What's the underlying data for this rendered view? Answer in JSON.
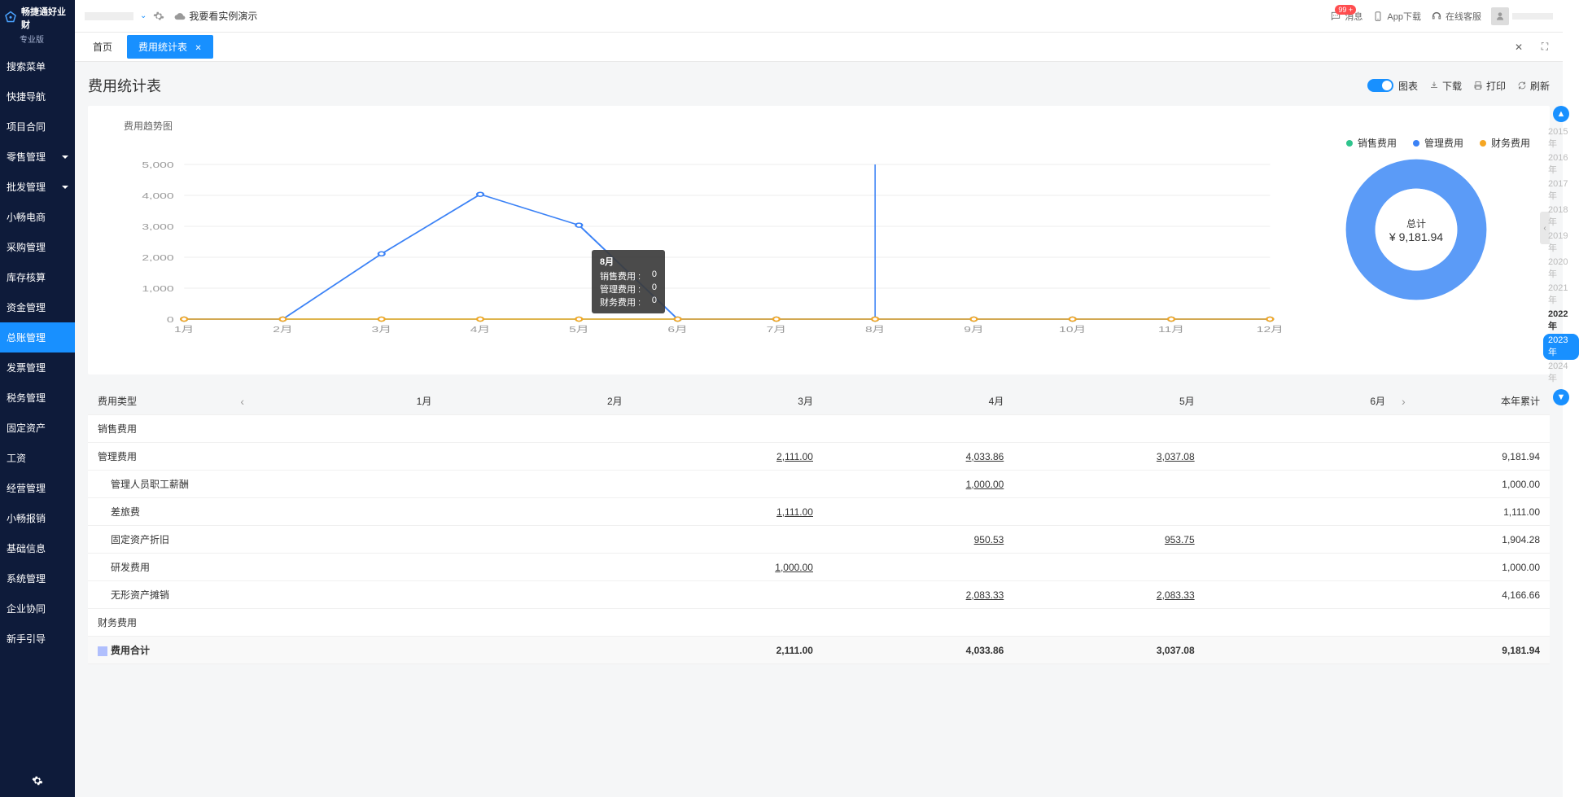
{
  "app": {
    "brand": "畅捷通好业财",
    "edition": "专业版"
  },
  "sidebar": {
    "items": [
      {
        "label": "搜索菜单"
      },
      {
        "label": "快捷导航"
      },
      {
        "label": "项目合同"
      },
      {
        "label": "零售管理",
        "sub": true
      },
      {
        "label": "批发管理",
        "sub": true
      },
      {
        "label": "小畅电商"
      },
      {
        "label": "采购管理"
      },
      {
        "label": "库存核算"
      },
      {
        "label": "资金管理"
      },
      {
        "label": "总账管理",
        "active": true
      },
      {
        "label": "发票管理"
      },
      {
        "label": "税务管理"
      },
      {
        "label": "固定资产"
      },
      {
        "label": "工资"
      },
      {
        "label": "经营管理"
      },
      {
        "label": "小畅报销"
      },
      {
        "label": "基础信息"
      },
      {
        "label": "系统管理"
      },
      {
        "label": "企业协同"
      },
      {
        "label": "新手引导"
      }
    ]
  },
  "topbar": {
    "demo": "我要看实例演示",
    "msg": "消息",
    "msg_badge": "99 +",
    "download": "App下载",
    "support": "在线客服"
  },
  "tabs": {
    "home": "首页",
    "active": "费用统计表"
  },
  "page": {
    "title": "费用统计表",
    "toggle_label": "图表",
    "actions": {
      "download": "下载",
      "print": "打印",
      "refresh": "刷新"
    }
  },
  "chart": {
    "title": "费用趋势图",
    "x": [
      "1月",
      "2月",
      "3月",
      "4月",
      "5月",
      "6月",
      "7月",
      "8月",
      "9月",
      "10月",
      "11月",
      "12月"
    ],
    "yticks": [
      0,
      1000,
      2000,
      3000,
      4000,
      5000
    ],
    "series": [
      {
        "name": "销售费用",
        "color": "#2fc48d",
        "values": [
          0,
          0,
          0,
          0,
          0,
          0,
          0,
          0,
          0,
          0,
          0,
          0
        ]
      },
      {
        "name": "管理费用",
        "color": "#3b82f6",
        "values": [
          0,
          0,
          2111,
          4034,
          3037,
          0,
          0,
          0,
          0,
          0,
          0,
          0
        ]
      },
      {
        "name": "财务费用",
        "color": "#f5a623",
        "values": [
          0,
          0,
          0,
          0,
          0,
          0,
          0,
          0,
          0,
          0,
          0,
          0
        ]
      }
    ],
    "tooltip": {
      "month": "8月",
      "rows": [
        [
          "销售费用",
          "0"
        ],
        [
          "管理费用",
          "0"
        ],
        [
          "财务费用",
          "0"
        ]
      ]
    },
    "tooltip_x_index": 7,
    "donut": {
      "label": "总计",
      "value": "¥ 9,181.94",
      "color": "#5b9bf7",
      "bg": "#ffffff"
    }
  },
  "years": {
    "list": [
      "2015年",
      "2016年",
      "2017年",
      "2018年",
      "2019年",
      "2020年",
      "2021年",
      "2022年",
      "2023年",
      "2024年"
    ],
    "current": "2022年",
    "selected": "2023年"
  },
  "table": {
    "col0": "费用类型",
    "months": [
      "1月",
      "2月",
      "3月",
      "4月",
      "5月",
      "6月"
    ],
    "ytd": "本年累计",
    "rows": [
      {
        "label": "销售费用",
        "cells": [
          "",
          "",
          "",
          "",
          "",
          ""
        ],
        "ytd": ""
      },
      {
        "label": "管理费用",
        "cells": [
          "",
          "",
          "2,111.00",
          "4,033.86",
          "3,037.08",
          ""
        ],
        "ytd": "9,181.94",
        "link": [
          2,
          3,
          4
        ]
      },
      {
        "label": "管理人员职工薪酬",
        "indent": true,
        "cells": [
          "",
          "",
          "",
          "1,000.00",
          "",
          ""
        ],
        "ytd": "1,000.00",
        "link": [
          3
        ]
      },
      {
        "label": "差旅费",
        "indent": true,
        "cells": [
          "",
          "",
          "1,111.00",
          "",
          "",
          ""
        ],
        "ytd": "1,111.00",
        "link": [
          2
        ]
      },
      {
        "label": "固定资产折旧",
        "indent": true,
        "cells": [
          "",
          "",
          "",
          "950.53",
          "953.75",
          ""
        ],
        "ytd": "1,904.28",
        "link": [
          3,
          4
        ]
      },
      {
        "label": "研发费用",
        "indent": true,
        "cells": [
          "",
          "",
          "1,000.00",
          "",
          "",
          ""
        ],
        "ytd": "1,000.00",
        "link": [
          2
        ]
      },
      {
        "label": "无形资产摊销",
        "indent": true,
        "cells": [
          "",
          "",
          "",
          "2,083.33",
          "2,083.33",
          ""
        ],
        "ytd": "4,166.66",
        "link": [
          3,
          4
        ]
      },
      {
        "label": "财务费用",
        "cells": [
          "",
          "",
          "",
          "",
          "",
          ""
        ],
        "ytd": ""
      }
    ],
    "total": {
      "label": "费用合计",
      "cells": [
        "",
        "",
        "2,111.00",
        "4,033.86",
        "3,037.08",
        ""
      ],
      "ytd": "9,181.94"
    }
  }
}
